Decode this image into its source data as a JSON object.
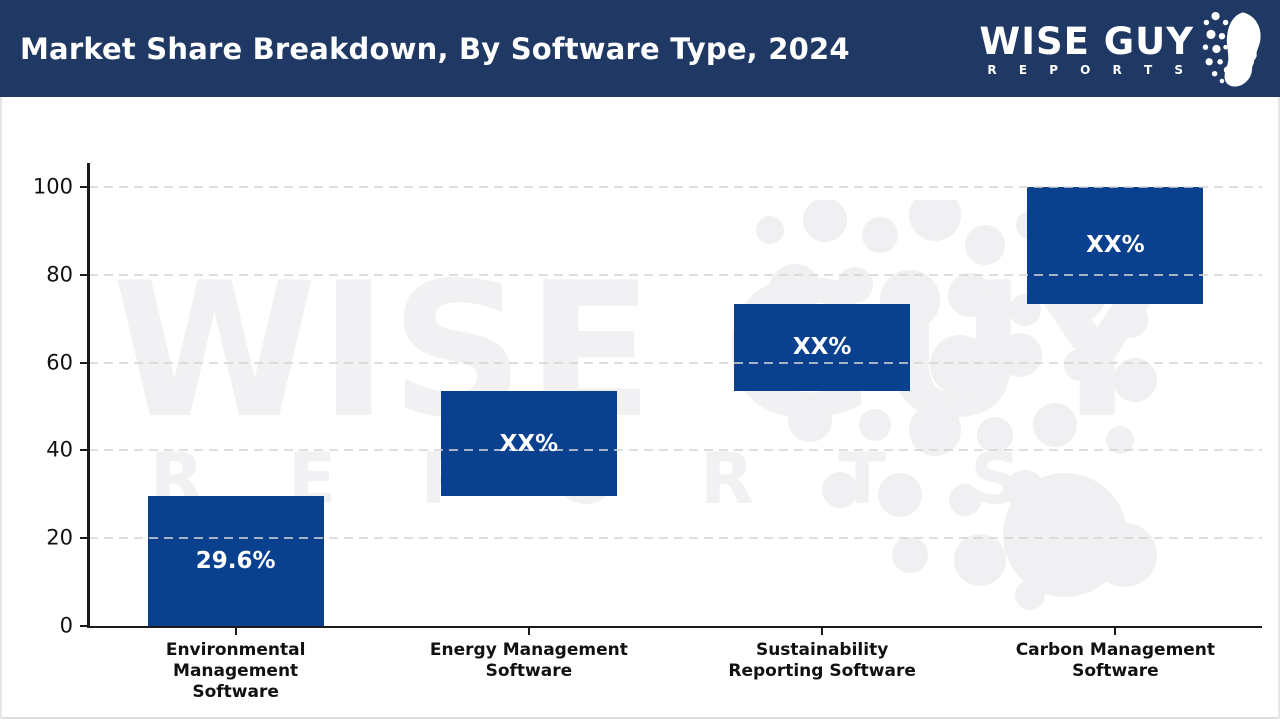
{
  "header": {
    "title": "Market Share Breakdown, By Software Type, 2024",
    "bg_color": "#203864",
    "logo": {
      "name": "WISE GUY",
      "subtitle": "R E P O R T S"
    }
  },
  "watermark": {
    "wordmark": "WISE GUY",
    "subtitle": "R E P O R T S"
  },
  "chart_data": {
    "type": "bar",
    "subtype": "waterfall",
    "title": "Market Share Breakdown, By Software Type, 2024",
    "categories": [
      "Environmental Management Software",
      "Energy Management Software",
      "Sustainability Reporting Software",
      "Carbon Management Software"
    ],
    "bars": [
      {
        "category": "Environmental Management Software",
        "category_lines": [
          "Environmental",
          "Management",
          "Software"
        ],
        "start": 0,
        "end": 29.6,
        "label": "29.6%"
      },
      {
        "category": "Energy Management Software",
        "category_lines": [
          "Energy Management",
          "Software"
        ],
        "start": 29.6,
        "end": 53.5,
        "label": "XX%"
      },
      {
        "category": "Sustainability Reporting Software",
        "category_lines": [
          "Sustainability",
          "Reporting Software"
        ],
        "start": 53.5,
        "end": 73.4,
        "label": "XX%"
      },
      {
        "category": "Carbon Management Software",
        "category_lines": [
          "Carbon Management",
          "Software"
        ],
        "start": 73.4,
        "end": 100,
        "label": "XX%"
      }
    ],
    "ylim": [
      0,
      100
    ],
    "yticks": [
      0,
      20,
      40,
      60,
      80,
      100
    ],
    "bar_color": "#0a418f",
    "value_label_color": "#ffffff",
    "grid": "dashed-horizontal",
    "legend": "none"
  }
}
